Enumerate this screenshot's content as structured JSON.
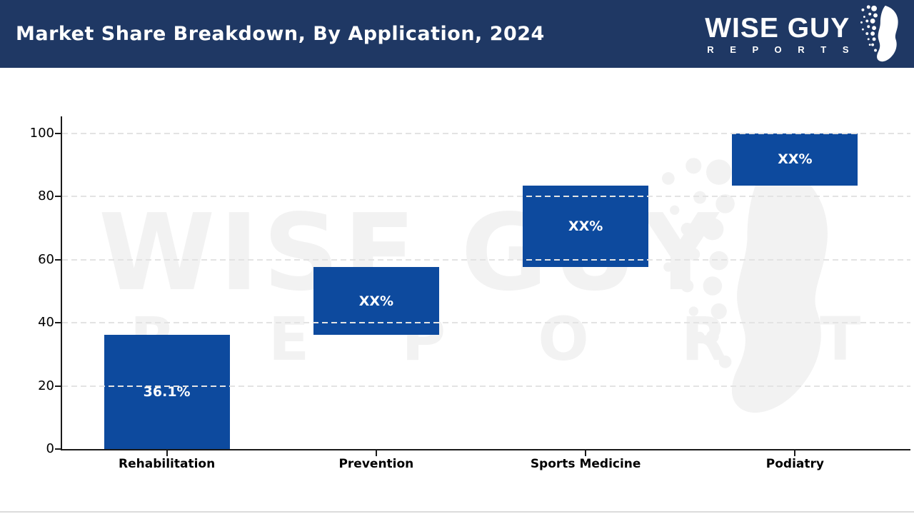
{
  "header": {
    "title": "Market Share Breakdown, By Application, 2024",
    "logo": {
      "line1": "WISE GUY",
      "line2": "R E P O R T S"
    }
  },
  "watermark": {
    "line1": "WISE GUY",
    "line2": "R E P O R T S"
  },
  "colors": {
    "header_bg": "#1f3864",
    "bar": "#0d4a9e",
    "bar_label": "#ffffff",
    "axis": "#1a1a1a",
    "grid": "#e3e3e3",
    "watermark": "#f2f2f2"
  },
  "chart_data": {
    "type": "bar",
    "subtype": "waterfall",
    "title": "Market Share Breakdown, By Application, 2024",
    "categories": [
      "Rehabilitation",
      "Prevention",
      "Sports Medicine",
      "Podiatry"
    ],
    "segments": [
      {
        "category": "Rehabilitation",
        "start": 0,
        "end": 36.1,
        "label": "36.1%"
      },
      {
        "category": "Prevention",
        "start": 36.1,
        "end": 57.8,
        "label": "XX%"
      },
      {
        "category": "Sports Medicine",
        "start": 57.8,
        "end": 83.6,
        "label": "XX%"
      },
      {
        "category": "Podiatry",
        "start": 83.6,
        "end": 100,
        "label": "XX%"
      }
    ],
    "xlabel": "",
    "ylabel": "",
    "yticks": [
      0,
      20,
      40,
      60,
      80,
      100
    ],
    "ylim": [
      0,
      105
    ],
    "grid": "horizontal-dashed",
    "legend": "none"
  }
}
